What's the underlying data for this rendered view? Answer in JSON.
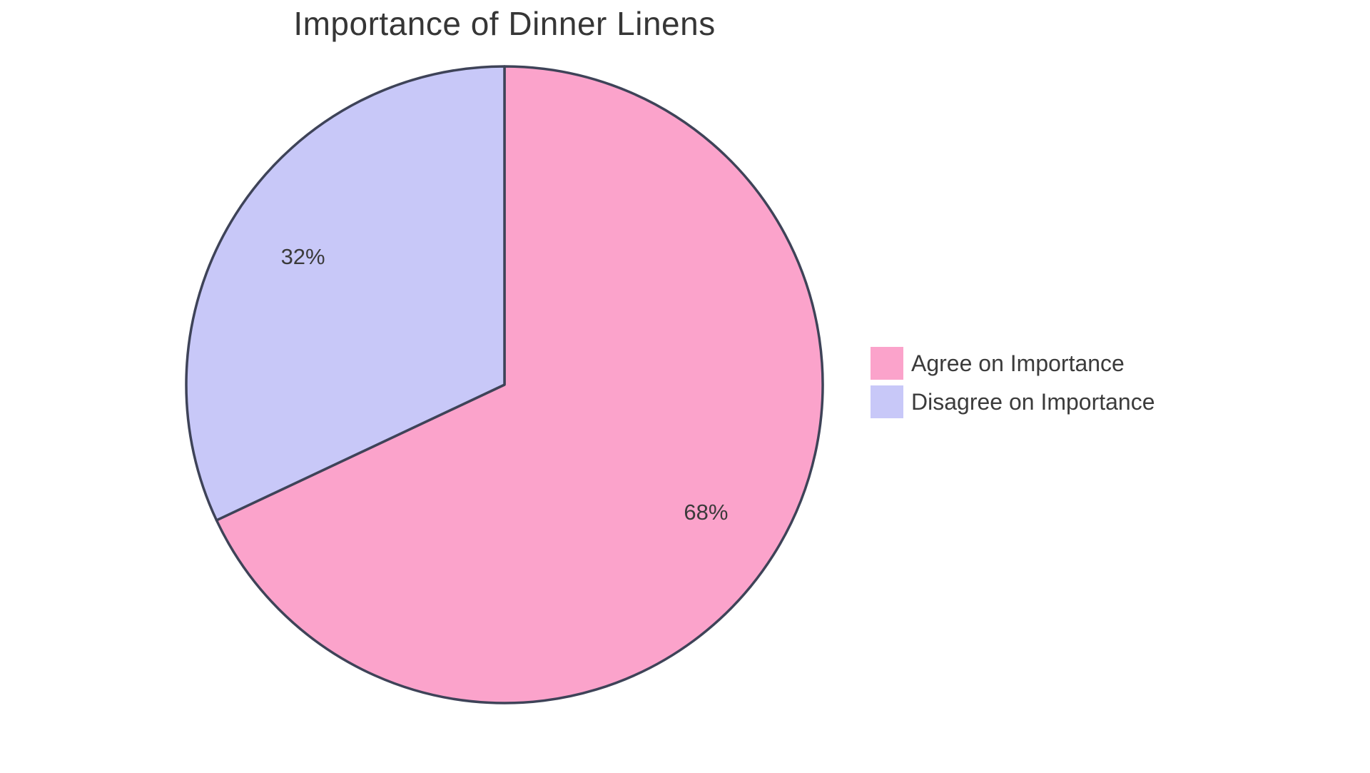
{
  "title": "Importance of Dinner Linens",
  "chart_data": {
    "type": "pie",
    "labels": [
      "Agree on Importance",
      "Disagree on Importance"
    ],
    "values": [
      68,
      32
    ],
    "slice_labels": [
      "68%",
      "32%"
    ],
    "colors": [
      "#FBA3CB",
      "#C8C8F8"
    ],
    "border_color": "#3E4358",
    "border_width": 3.5,
    "slice_label_color": "#3b3b3b",
    "title": "Importance of Dinner Linens",
    "start_angle_deg": -90,
    "direction": "clockwise",
    "legend_position": "right",
    "grid": false
  }
}
